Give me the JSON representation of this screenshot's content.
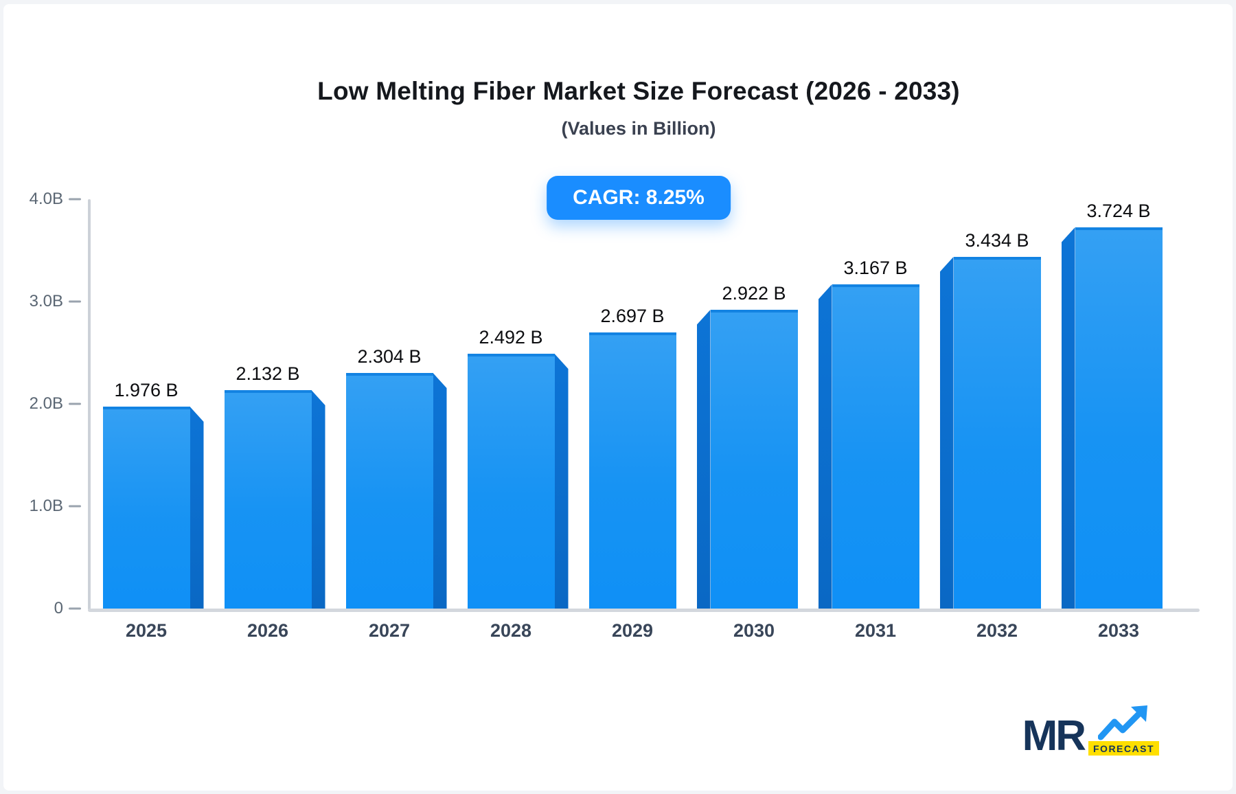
{
  "header": {
    "title": "Low Melting Fiber Market Size Forecast (2026 - 2033)",
    "subtitle": "(Values in Billion)",
    "cagr_badge_label": "CAGR: 8.25%"
  },
  "chart_data": {
    "type": "bar",
    "title": "Low Melting Fiber Market Size Forecast (2026 - 2033)",
    "subtitle": "(Values in Billion)",
    "cagr_percent": 8.25,
    "categories": [
      "2025",
      "2026",
      "2027",
      "2028",
      "2029",
      "2030",
      "2031",
      "2032",
      "2033"
    ],
    "values": [
      1.976,
      2.132,
      2.304,
      2.492,
      2.697,
      2.922,
      3.167,
      3.434,
      3.724
    ],
    "value_labels": [
      "1.976 B",
      "2.132 B",
      "2.304 B",
      "2.492 B",
      "2.697 B",
      "2.922 B",
      "3.167 B",
      "3.434 B",
      "3.724 B"
    ],
    "unit": "Billion",
    "xlabel": "",
    "ylabel": "",
    "ylim": [
      0,
      4
    ],
    "y_tick_values": [
      0,
      1,
      2,
      3,
      4
    ],
    "y_tick_labels": [
      "0",
      "1.0B",
      "2.0B",
      "3.0B",
      "4.0B"
    ],
    "grid": false,
    "legend": false,
    "bar_style": "3d-perspective",
    "bar_color": "#1793f3",
    "bar_side_color": "#0b6ecb"
  },
  "colors": {
    "page_background": "#f2f4f7",
    "card_background": "#ffffff",
    "badge_background": "#1a8dff",
    "badge_text": "#ffffff",
    "axis_line": "#ccd1d8",
    "tick_text": "#5a6673",
    "category_text": "#394659",
    "value_text": "#0c0d10",
    "logo_navy": "#16345a",
    "logo_yellow": "#ffdf00",
    "logo_arrow_blue": "#2196f3"
  },
  "logo": {
    "text": "MR",
    "tag": "FORECAST",
    "icon": "trend-up-arrow-icon"
  }
}
